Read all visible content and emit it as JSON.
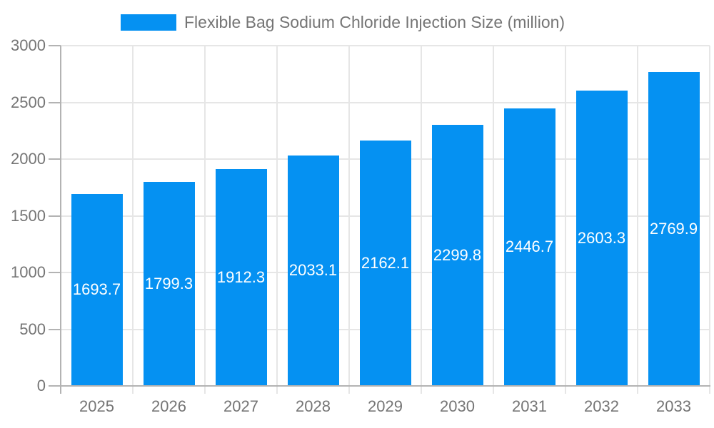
{
  "legend": {
    "label": "Flexible Bag Sodium Chloride Injection Size (million)"
  },
  "colors": {
    "bar": "#0591f2",
    "axis": "#b3b3b3",
    "grid": "#e6e6e6",
    "text": "#757575",
    "value_label": "#ffffff",
    "background": "#ffffff"
  },
  "chart_data": {
    "type": "bar",
    "title": "Flexible Bag Sodium Chloride Injection Size (million)",
    "categories": [
      "2025",
      "2026",
      "2027",
      "2028",
      "2029",
      "2030",
      "2031",
      "2032",
      "2033"
    ],
    "values": [
      1693.7,
      1799.3,
      1912.3,
      2033.1,
      2162.1,
      2299.8,
      2446.7,
      2603.3,
      2769.9
    ],
    "xlabel": "",
    "ylabel": "",
    "ylim": [
      0,
      3000
    ],
    "yticks": [
      0,
      500,
      1000,
      1500,
      2000,
      2500,
      3000
    ],
    "grid": true,
    "legend_position": "top",
    "value_labels": "inside-center"
  }
}
